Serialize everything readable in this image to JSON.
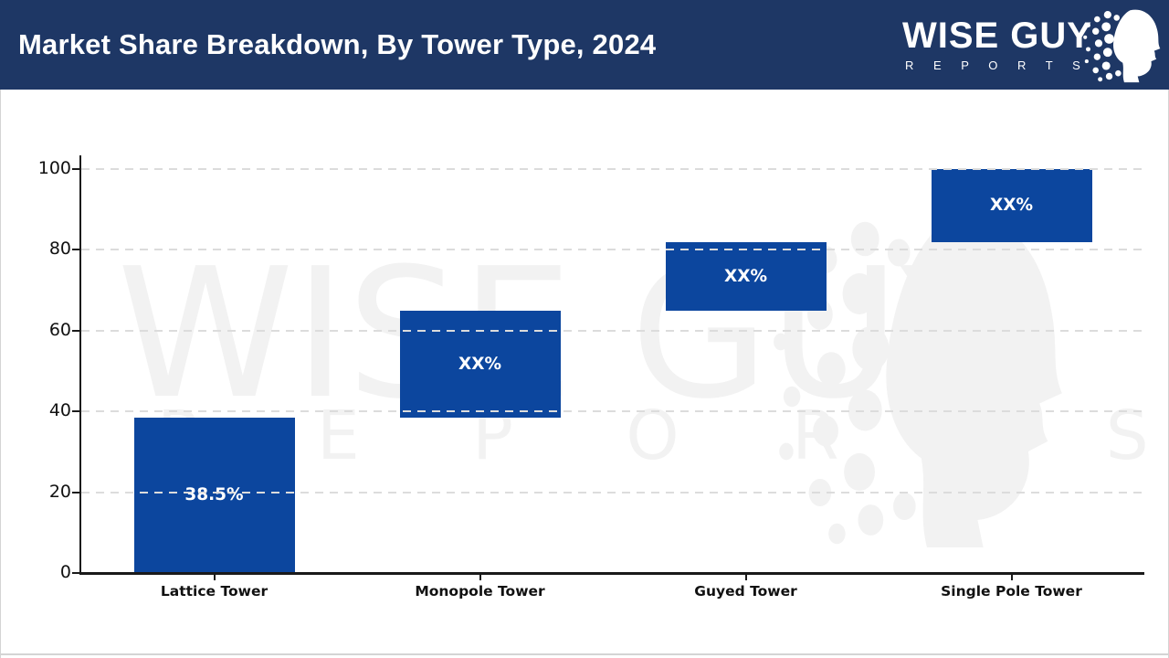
{
  "header": {
    "title": "Market Share Breakdown, By Tower Type, 2024"
  },
  "logo": {
    "name": "WISE GUY",
    "subtext": "R E P O R T S",
    "head_icon": "dotted-head-profile"
  },
  "watermark": {
    "line1": "WISE GUY",
    "line2": "R E P O R T S"
  },
  "chart_data": {
    "type": "bar",
    "subtype": "floating-waterfall",
    "title": "Market Share Breakdown, By Tower Type, 2024",
    "categories": [
      "Lattice Tower",
      "Monopole Tower",
      "Guyed Tower",
      "Single Pole Tower"
    ],
    "bars": [
      {
        "category": "Lattice Tower",
        "start": 0,
        "end": 38.5,
        "label": "38.5%"
      },
      {
        "category": "Monopole Tower",
        "start": 38.5,
        "end": 65,
        "label": "XX%"
      },
      {
        "category": "Guyed Tower",
        "start": 65,
        "end": 82,
        "label": "XX%"
      },
      {
        "category": "Single Pole Tower",
        "start": 82,
        "end": 100,
        "label": "XX%"
      }
    ],
    "ylim": [
      0,
      100
    ],
    "yticks": [
      0,
      20,
      40,
      60,
      80,
      100
    ],
    "xlabel": "",
    "ylabel": "",
    "grid": "horizontal-dashed",
    "legend": "none",
    "colors": {
      "bar": "#0c469e",
      "header_bg": "#1e3765",
      "grid": "#dcdcdc",
      "axis": "#1a1a1a",
      "bar_label_text": "#ffffff",
      "watermark": "#f2f2f2"
    }
  }
}
